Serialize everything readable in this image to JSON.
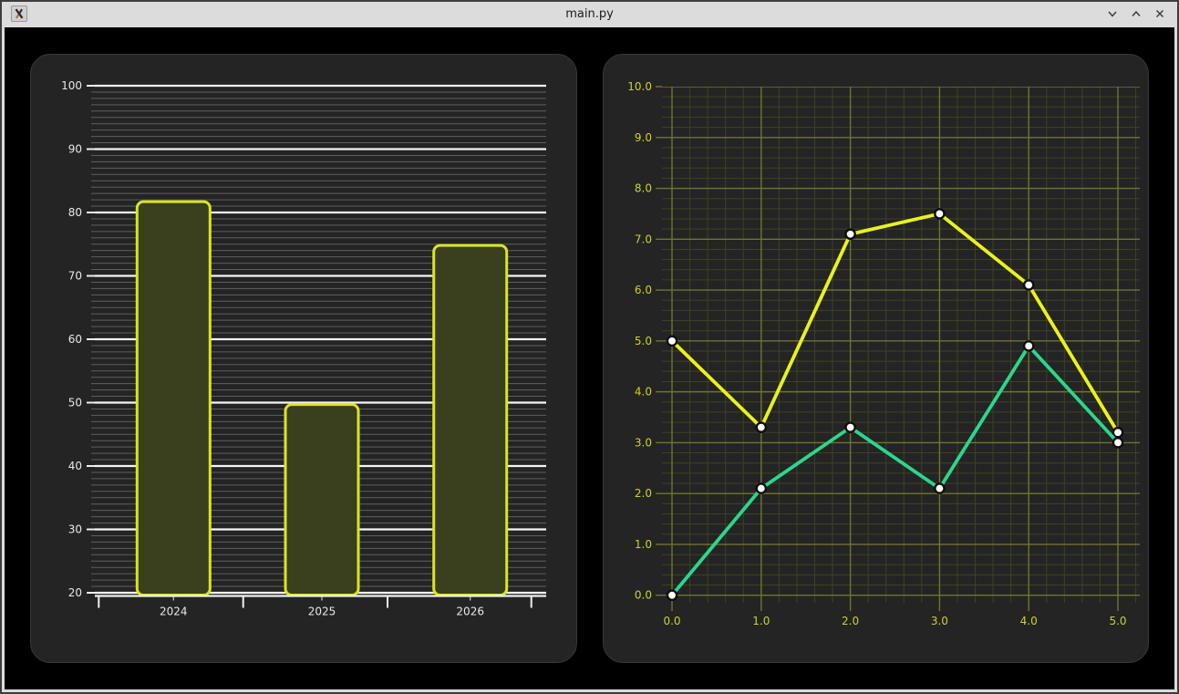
{
  "window": {
    "title": "main.py",
    "icon": "x11-logo-icon",
    "controls": [
      {
        "name": "minimize-button",
        "icon": "chevron-down-icon"
      },
      {
        "name": "maximize-button",
        "icon": "chevron-up-icon"
      },
      {
        "name": "close-button",
        "icon": "x-icon"
      }
    ]
  },
  "ui_colors": {
    "titlebar_bg": "#dcdcdc",
    "outer_frame": "#3d3d3d",
    "content_bg": "#000000",
    "panel_bg": "#242424"
  },
  "chart_data": [
    {
      "id": "bar-chart",
      "type": "bar",
      "title": "",
      "xlabel": "",
      "ylabel": "",
      "categories": [
        "2024",
        "2025",
        "2026"
      ],
      "values": [
        81.7,
        49.7,
        74.8
      ],
      "baseline": 20,
      "ylim": [
        20,
        100
      ],
      "ytick_values": [
        20,
        30,
        40,
        50,
        60,
        70,
        80,
        90,
        100
      ],
      "ytick_labels": [
        "20",
        "30",
        "40",
        "50",
        "60",
        "70",
        "80",
        "90",
        "100"
      ],
      "minor_step": 1,
      "grid": "horizontal-major-and-minor",
      "legend": "none",
      "colors": {
        "bar_fill": "#3a3f1e",
        "bar_border": "#d9e620",
        "major_grid": "#f5f5f5",
        "minor_grid": "#787878",
        "axis": "#f0f0f0",
        "tick_label": "#e9e9e9"
      }
    },
    {
      "id": "line-chart",
      "type": "line",
      "title": "",
      "xlabel": "",
      "ylabel": "",
      "x": [
        0,
        1,
        2,
        3,
        4,
        5
      ],
      "series": [
        {
          "name": "yellow-series",
          "color": "#e9f21c",
          "values": [
            5.0,
            3.3,
            7.1,
            7.5,
            6.1,
            3.2
          ]
        },
        {
          "name": "green-series",
          "color": "#2bd78c",
          "values": [
            0.0,
            2.1,
            3.3,
            2.1,
            4.9,
            3.0
          ]
        }
      ],
      "xlim": [
        0,
        5
      ],
      "ylim": [
        0,
        10
      ],
      "xtick_values": [
        0,
        1,
        2,
        3,
        4,
        5
      ],
      "xtick_labels": [
        "0.0",
        "1.0",
        "2.0",
        "3.0",
        "4.0",
        "5.0"
      ],
      "ytick_values": [
        0,
        1,
        2,
        3,
        4,
        5,
        6,
        7,
        8,
        9,
        10
      ],
      "ytick_labels": [
        "0.0",
        "1.0",
        "2.0",
        "3.0",
        "4.0",
        "5.0",
        "6.0",
        "7.0",
        "8.0",
        "9.0",
        "10.0"
      ],
      "minor_step": 0.2,
      "grid": "both-major-and-minor",
      "legend": "none",
      "marker": "circle-white-black-ring",
      "colors": {
        "major_grid": "#6f752f",
        "minor_grid": "#3d4224",
        "tick_label": "#ccd329",
        "marker_fill": "#ffffff",
        "marker_ring": "#0e0e0e"
      }
    }
  ]
}
